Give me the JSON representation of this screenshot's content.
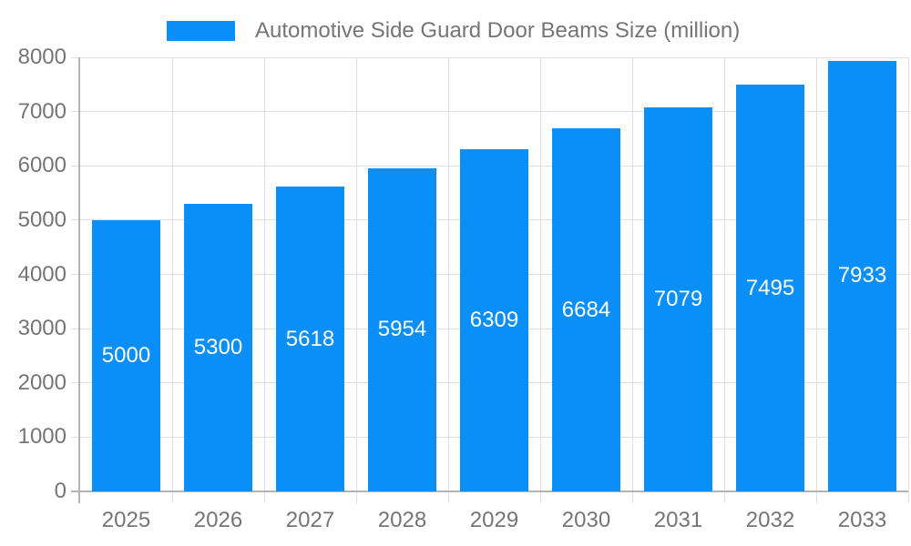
{
  "chart_data": {
    "type": "bar",
    "title": "Automotive Side Guard Door Beams Size (million)",
    "categories": [
      "2025",
      "2026",
      "2027",
      "2028",
      "2029",
      "2030",
      "2031",
      "2032",
      "2033"
    ],
    "values": [
      5000,
      5300,
      5618,
      5954,
      6309,
      6684,
      7079,
      7495,
      7933
    ],
    "xlabel": "",
    "ylabel": "",
    "ylim": [
      0,
      8000
    ],
    "ytick_step": 1000,
    "ytick_labels": [
      "0",
      "1000",
      "2000",
      "3000",
      "4000",
      "5000",
      "6000",
      "7000",
      "8000"
    ],
    "grid": true,
    "legend_position": "top",
    "bar_labels_visible": true,
    "colors": {
      "bar": "#0A8FF8",
      "bar_label": "#FFFFFF",
      "axis_text": "#757575",
      "gridline": "#E0E0E0",
      "axis_line": "#B3B3B3"
    }
  }
}
